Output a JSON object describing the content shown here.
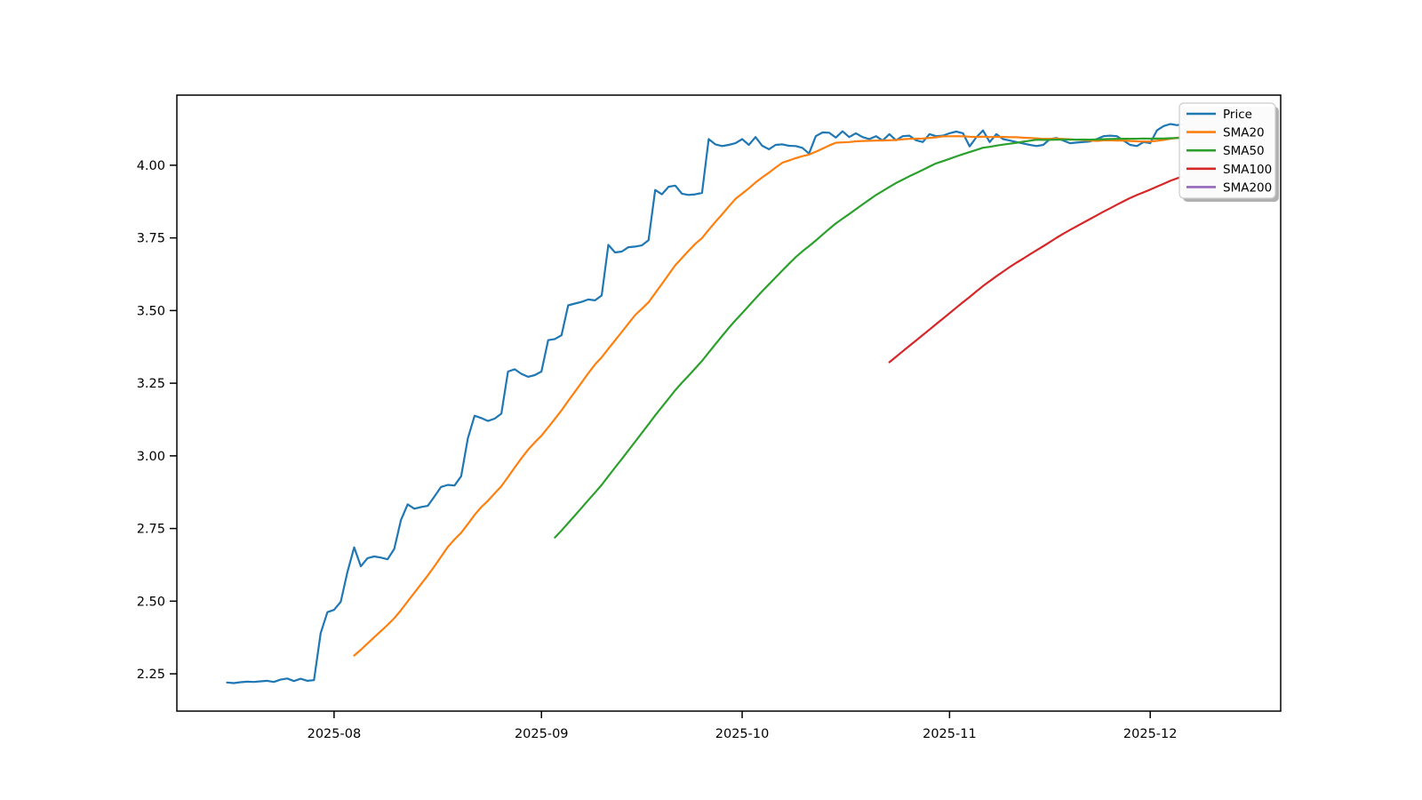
{
  "figure": {
    "background": "#ffffff"
  },
  "chart_data": {
    "type": "line",
    "title": "",
    "xlabel": "",
    "ylabel": "",
    "grid": false,
    "x_start_date": "2025-07-16",
    "x_frequency": "daily",
    "price_values": [
      2.22,
      2.218,
      2.221,
      2.223,
      2.222,
      2.224,
      2.226,
      2.222,
      2.23,
      2.234,
      2.225,
      2.233,
      2.226,
      2.228,
      2.39,
      2.462,
      2.47,
      2.498,
      2.6,
      2.685,
      2.62,
      2.648,
      2.654,
      2.65,
      2.644,
      2.68,
      2.78,
      2.833,
      2.818,
      2.824,
      2.828,
      2.86,
      2.893,
      2.9,
      2.898,
      2.93,
      3.06,
      3.138,
      3.13,
      3.12,
      3.128,
      3.145,
      3.29,
      3.298,
      3.282,
      3.272,
      3.278,
      3.29,
      3.398,
      3.402,
      3.415,
      3.518,
      3.524,
      3.53,
      3.538,
      3.535,
      3.552,
      3.726,
      3.7,
      3.703,
      3.718,
      3.72,
      3.724,
      3.742,
      3.915,
      3.9,
      3.926,
      3.93,
      3.902,
      3.898,
      3.9,
      3.905,
      4.09,
      4.072,
      4.066,
      4.07,
      4.076,
      4.09,
      4.07,
      4.097,
      4.067,
      4.055,
      4.07,
      4.072,
      4.067,
      4.066,
      4.06,
      4.04,
      4.1,
      4.113,
      4.112,
      4.095,
      4.117,
      4.097,
      4.11,
      4.097,
      4.09,
      4.1,
      4.085,
      4.107,
      4.086,
      4.1,
      4.102,
      4.086,
      4.08,
      4.107,
      4.1,
      4.102,
      4.11,
      4.116,
      4.11,
      4.065,
      4.096,
      4.12,
      4.08,
      4.107,
      4.09,
      4.085,
      4.08,
      4.075,
      4.07,
      4.066,
      4.07,
      4.09,
      4.094,
      4.085,
      4.076,
      4.078,
      4.08,
      4.082,
      4.09,
      4.1,
      4.102,
      4.1,
      4.085,
      4.07,
      4.066,
      4.08,
      4.076,
      4.12,
      4.135,
      4.142,
      4.138,
      4.142,
      4.14,
      4.143,
      4.141,
      4.144,
      4.142,
      4.145,
      4.143
    ],
    "series": [
      {
        "name": "Price",
        "kind": "price",
        "color": "#1f77b4"
      },
      {
        "name": "SMA20",
        "kind": "sma",
        "window": 20,
        "color": "#ff7f0e"
      },
      {
        "name": "SMA50",
        "kind": "sma",
        "window": 50,
        "color": "#2ca02c"
      },
      {
        "name": "SMA100",
        "kind": "sma",
        "window": 100,
        "color": "#d62728"
      },
      {
        "name": "SMA200",
        "kind": "sma",
        "window": 200,
        "color": "#9467bd"
      }
    ],
    "xticks": [
      {
        "label": "2025-08",
        "date": "2025-08-01"
      },
      {
        "label": "2025-09",
        "date": "2025-09-01"
      },
      {
        "label": "2025-10",
        "date": "2025-10-01"
      },
      {
        "label": "2025-11",
        "date": "2025-11-01"
      },
      {
        "label": "2025-12",
        "date": "2025-12-01"
      }
    ],
    "yticks": [
      "2.25",
      "2.50",
      "2.75",
      "3.00",
      "3.25",
      "3.50",
      "3.75",
      "4.00"
    ],
    "ylim": [
      2.12,
      4.24
    ],
    "xlim_dates": [
      "2025-07-08",
      "2025-12-20"
    ],
    "axis_margin": 0.05,
    "legend": {
      "position": "upper right",
      "labels": [
        "Price",
        "SMA20",
        "SMA50",
        "SMA100",
        "SMA200"
      ],
      "frame_color": "#cccccc",
      "shadow_color": "#b0b0b0",
      "background": "#ffffff"
    },
    "spine_color": "#000000",
    "tick_color": "#000000"
  }
}
